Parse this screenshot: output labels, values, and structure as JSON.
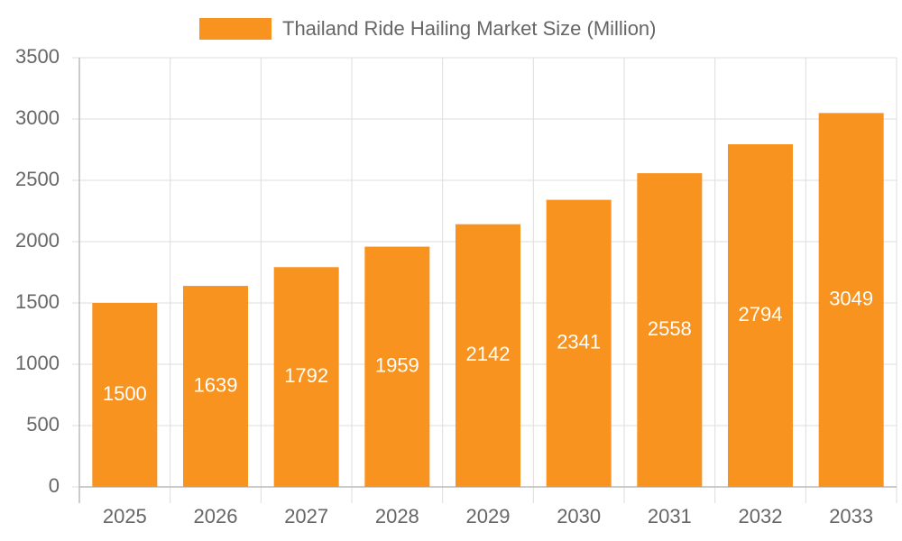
{
  "chart_data": {
    "type": "bar",
    "categories": [
      "2025",
      "2026",
      "2027",
      "2028",
      "2029",
      "2030",
      "2031",
      "2032",
      "2033"
    ],
    "series": [
      {
        "name": "Thailand Ride Hailing Market Size (Million)",
        "color": "#f7931e",
        "values": [
          1500,
          1639,
          1792,
          1959,
          2142,
          2341,
          2558,
          2794,
          3049
        ]
      }
    ],
    "ylim": [
      0,
      3500
    ],
    "yticks": [
      0,
      500,
      1000,
      1500,
      2000,
      2500,
      3000,
      3500
    ],
    "grid": true,
    "legend": "top"
  }
}
